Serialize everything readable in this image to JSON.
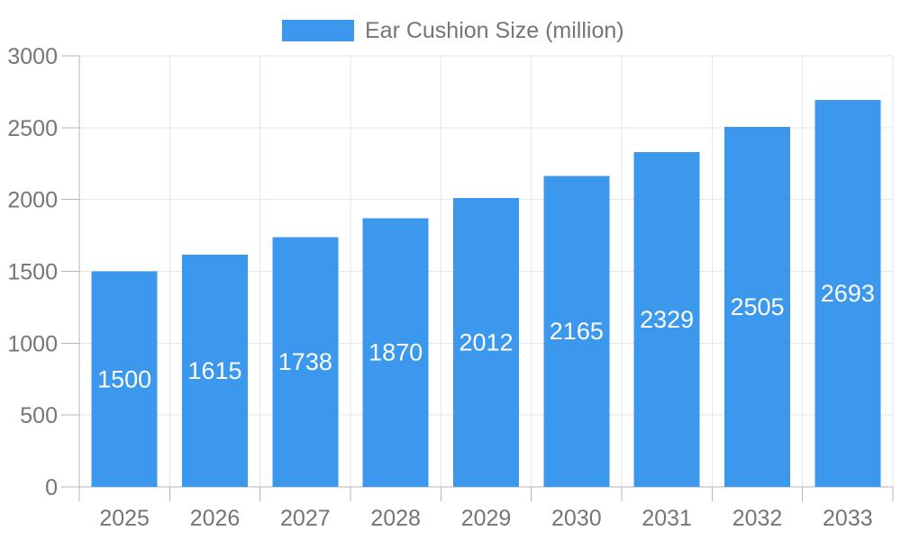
{
  "chart_data": {
    "type": "bar",
    "title": "Ear Cushion Size (million)",
    "legend": {
      "label": "Ear Cushion Size (million)",
      "position": "top-center"
    },
    "categories": [
      "2025",
      "2026",
      "2027",
      "2028",
      "2029",
      "2030",
      "2031",
      "2032",
      "2033"
    ],
    "values": [
      1500,
      1615,
      1738,
      1870,
      2012,
      2165,
      2329,
      2505,
      2693
    ],
    "series": [
      {
        "name": "Ear Cushion Size (million)",
        "values": [
          1500,
          1615,
          1738,
          1870,
          2012,
          2165,
          2329,
          2505,
          2693
        ]
      }
    ],
    "xlabel": "",
    "ylabel": "",
    "ylim": [
      0,
      3000
    ],
    "yticks": [
      0,
      500,
      1000,
      1500,
      2000,
      2500,
      3000
    ],
    "grid": true,
    "bar_labels_inside": true,
    "colors": {
      "bar": "#3B98EC",
      "bar_label": "#FFFFFF",
      "axis_text": "#757575",
      "axis_line": "#B5B5B5",
      "grid_line": "#E6E6E6",
      "background": "#FFFFFF"
    }
  }
}
